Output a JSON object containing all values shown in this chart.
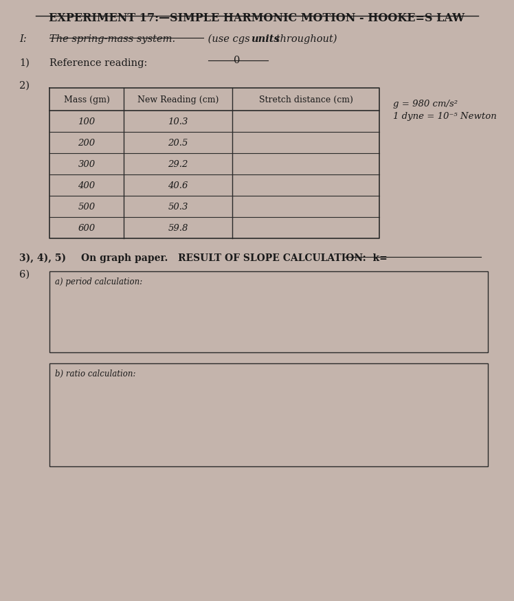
{
  "title": "EXPERIMENT 17:—SIMPLE HARMONIC MOTION - HOOKE=S LAW",
  "part_I_label": "I:",
  "part_I_text": "The spring-mass system.",
  "item1_label": "1)",
  "item1_text": "Reference reading:",
  "item1_value": "0",
  "item2_label": "2)",
  "table_headers": [
    "Mass (gm)",
    "New Reading (cm)",
    "Stretch distance (cm)"
  ],
  "table_data": [
    [
      "100",
      "10.3",
      ""
    ],
    [
      "200",
      "20.5",
      ""
    ],
    [
      "300",
      "29.2",
      ""
    ],
    [
      "400",
      "40.6",
      ""
    ],
    [
      "500",
      "50.3",
      ""
    ],
    [
      "600",
      "59.8",
      ""
    ]
  ],
  "note1": "g = 980 cm/s²",
  "note2": "1 dyne = 10⁻⁵ Newton",
  "item345_label": "3), 4), 5)",
  "item345_text": "On graph paper.   RESULT OF SLOPE CALCULATION:  k=",
  "item6_label": "6)",
  "box_a_label": "a) period calculation:",
  "box_b_label": "b) ratio calculation:",
  "bg_color": "#c4b4ac",
  "text_color": "#1a1a1a",
  "table_border_color": "#2a2a2a",
  "box_border_color": "#2a2a2a"
}
